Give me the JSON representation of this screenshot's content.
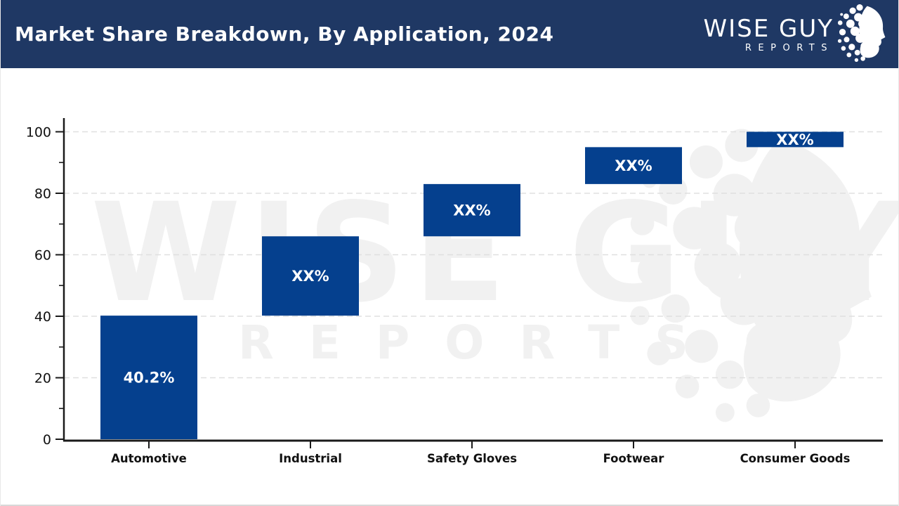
{
  "header": {
    "title": "Market Share Breakdown, By Application, 2024",
    "logo": {
      "primary": "WISE GUY",
      "secondary": "REPORTS"
    }
  },
  "watermark": {
    "primary": "WISE GUY",
    "secondary": "REPORTS"
  },
  "colors": {
    "header_bg": "#1f3864",
    "bar_blue": "#05408e",
    "grid": "#e0e0e0",
    "axis": "#1a1a1a",
    "tick_label": "#111111",
    "bar_label": "#ffffff",
    "watermark": "#f1f1f1"
  },
  "chart_data": {
    "type": "bar",
    "subtype": "waterfall",
    "title": "Market Share Breakdown, By Application, 2024",
    "xlabel": "",
    "ylabel": "",
    "unit": "%",
    "categories": [
      "Automotive",
      "Industrial",
      "Safety Gloves",
      "Footwear",
      "Consumer Goods"
    ],
    "segments": [
      {
        "category": "Automotive",
        "start": 0,
        "end": 40.2,
        "label": "40.2%"
      },
      {
        "category": "Industrial",
        "start": 40.2,
        "end": 66,
        "label": "XX%"
      },
      {
        "category": "Safety Gloves",
        "start": 66,
        "end": 83,
        "label": "XX%"
      },
      {
        "category": "Footwear",
        "start": 83,
        "end": 95,
        "label": "XX%"
      },
      {
        "category": "Consumer Goods",
        "start": 95,
        "end": 100,
        "label": "XX%"
      }
    ],
    "yticks": [
      0,
      20,
      40,
      60,
      80,
      100
    ],
    "minor_yticks": [
      10,
      30,
      50,
      70,
      90
    ],
    "ylim": [
      0,
      104
    ],
    "grid": "horizontal-dashed",
    "legend": "none"
  }
}
